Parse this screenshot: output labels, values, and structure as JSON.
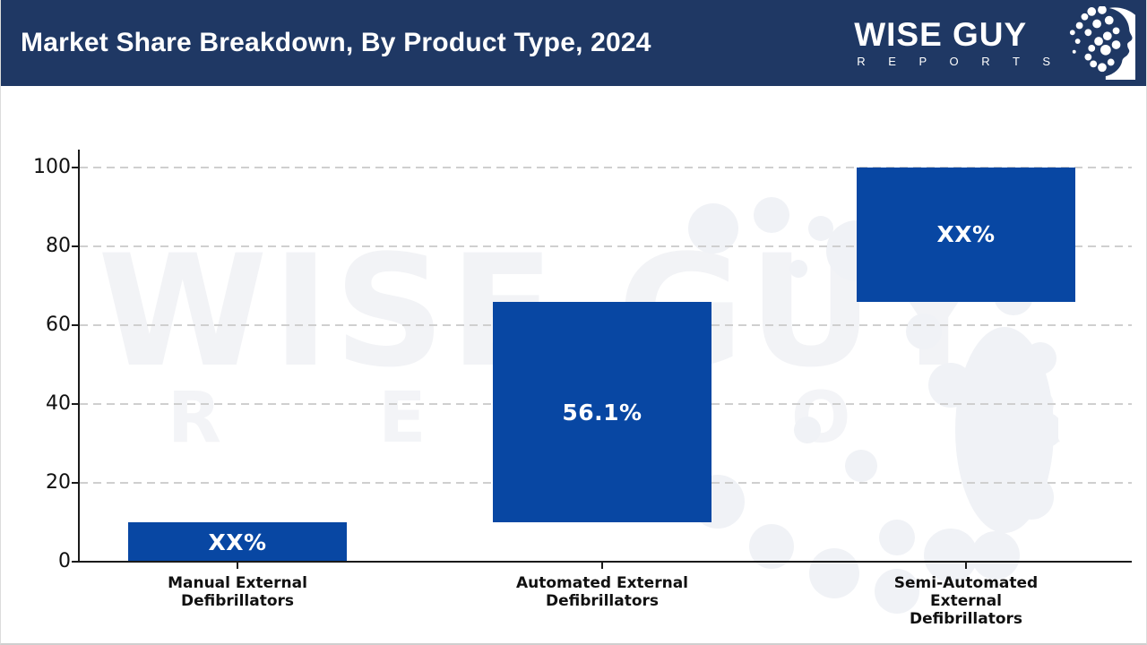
{
  "header": {
    "title": "Market Share Breakdown, By Product Type, 2024",
    "logo": {
      "line1": "WISE GUY",
      "line2": "R E P O R T S",
      "icon": "dotted-face-profile"
    }
  },
  "watermark": {
    "line1": "WISE GUY",
    "line2": "R E P O R T S"
  },
  "chart_data": {
    "type": "bar",
    "subtype": "floating-waterfall",
    "title": "Market Share Breakdown, By Product Type, 2024",
    "xlabel": "",
    "ylabel": "",
    "ylim": [
      0,
      100
    ],
    "yticks": [
      0,
      20,
      40,
      60,
      80,
      100
    ],
    "grid": "horizontal-dashed",
    "legend": "none",
    "bar_color": "#0847a3",
    "categories": [
      "Manual External Defibrillators",
      "Automated External Defibrillators",
      "Semi-Automated External Defibrillators"
    ],
    "category_lines": [
      [
        "Manual External",
        "Defibrillators"
      ],
      [
        "Automated External",
        "Defibrillators"
      ],
      [
        "Semi-Automated",
        "External",
        "Defibrillators"
      ]
    ],
    "bars": [
      {
        "label": "XX%",
        "start": 0,
        "end": 9.9
      },
      {
        "label": "56.1%",
        "start": 9.9,
        "end": 66
      },
      {
        "label": "XX%",
        "start": 66,
        "end": 100
      }
    ]
  },
  "colors": {
    "header_bg": "#1f3864",
    "bar": "#0847a3",
    "grid": "#cfcfcf",
    "axis": "#1a1a1a",
    "value_label": "#ffffff",
    "watermark": "#f2f3f6"
  }
}
